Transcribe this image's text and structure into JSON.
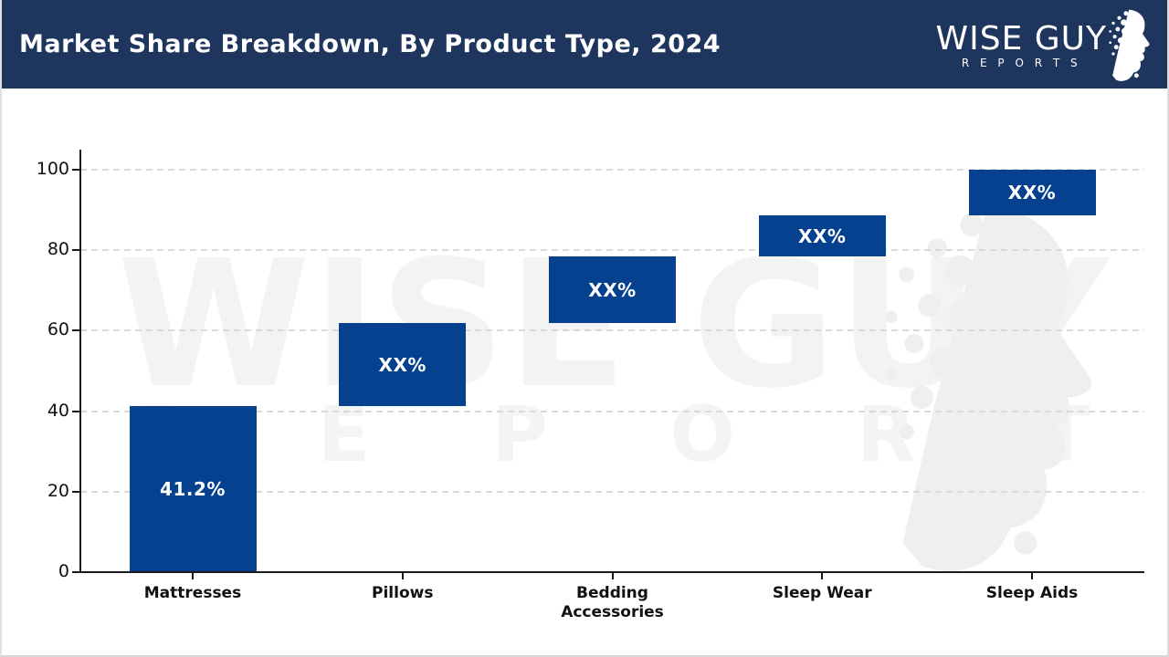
{
  "header": {
    "title": "Market Share Breakdown, By Product Type, 2024",
    "bg_color": "#1e355e",
    "logo": {
      "line1": "WISE GUY",
      "line2": "R E P O R T S"
    }
  },
  "watermark": {
    "line1": "WISE GUY",
    "line2": "R E P O R T S"
  },
  "chart_data": {
    "type": "bar",
    "subtype": "waterfall",
    "title": "Market Share Breakdown, By Product Type, 2024",
    "categories": [
      "Mattresses",
      "Pillows",
      "Bedding Accessories",
      "Sleep Wear",
      "Sleep Aids"
    ],
    "segments": [
      {
        "category": "Mattresses",
        "start": 0,
        "end": 41.2,
        "label": "41.2%"
      },
      {
        "category": "Pillows",
        "start": 41.2,
        "end": 61.8,
        "label": "XX%"
      },
      {
        "category": "Bedding Accessories",
        "start": 61.8,
        "end": 78.4,
        "label": "XX%"
      },
      {
        "category": "Sleep Wear",
        "start": 78.4,
        "end": 88.6,
        "label": "XX%"
      },
      {
        "category": "Sleep Aids",
        "start": 88.6,
        "end": 100,
        "label": "XX%"
      }
    ],
    "xlabel": "",
    "ylabel": "",
    "y_ticks": [
      0,
      20,
      40,
      60,
      80,
      100
    ],
    "ylim": [
      0,
      100
    ],
    "grid": "horizontal-dashed",
    "legend": "none",
    "bar_color": "#05418f",
    "bar_label_color": "#ffffff"
  }
}
